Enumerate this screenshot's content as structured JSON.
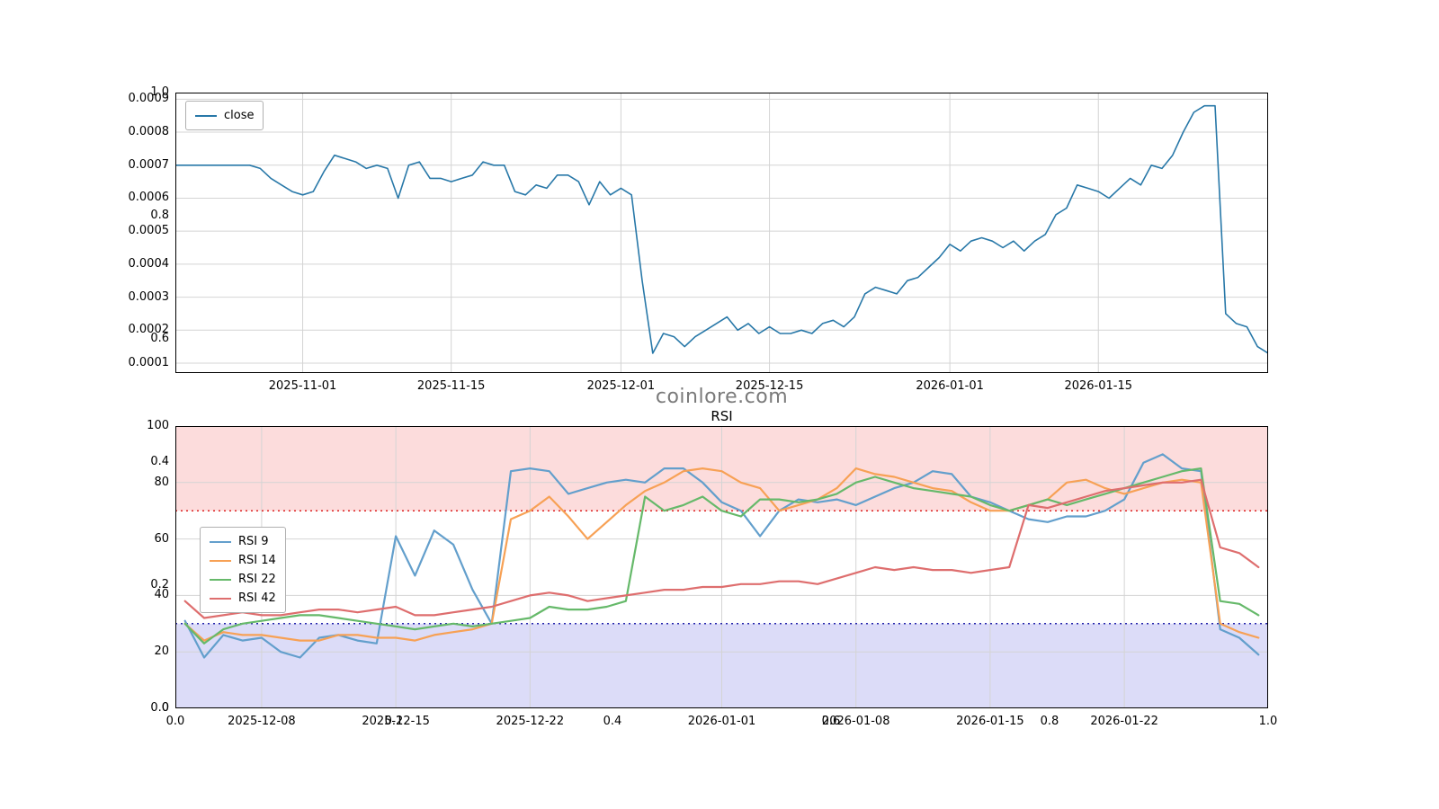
{
  "watermark": "coinlore.com",
  "colors": {
    "grid": "#d4d4d4",
    "spine": "#000000",
    "close_line": "#2878a8",
    "rsi9": "#639fcc",
    "rsi14": "#f7a155",
    "rsi22": "#66b96a",
    "rsi42": "#de6e6e",
    "overbought_band": "#fcdcdc",
    "oversold_band": "#dcdcf8",
    "overbought_line": "#dd2222",
    "oversold_line": "#2222aa"
  },
  "overlay_axis": {
    "y_ticks": [
      {
        "value": 1.0,
        "label": "1.0"
      },
      {
        "value": 0.8,
        "label": "0.8"
      },
      {
        "value": 0.6,
        "label": "0.6"
      },
      {
        "value": 0.4,
        "label": "0.4"
      },
      {
        "value": 0.2,
        "label": "0.2"
      },
      {
        "value": 0.0,
        "label": "0.0"
      }
    ],
    "x_ticks": [
      {
        "value": 0.0,
        "label": "0.0"
      },
      {
        "value": 0.2,
        "label": "0.2"
      },
      {
        "value": 0.4,
        "label": "0.4"
      },
      {
        "value": 0.6,
        "label": "0.6"
      },
      {
        "value": 0.8,
        "label": "0.8"
      },
      {
        "value": 1.0,
        "label": "1.0"
      }
    ]
  },
  "chart_data": [
    {
      "type": "line",
      "title": "",
      "xlim": [
        0,
        103
      ],
      "ylim": [
        7e-05,
        0.00092
      ],
      "grid": true,
      "legend_position": "upper-left",
      "x_ticks": [
        {
          "index": 12,
          "label": "2025-11-01"
        },
        {
          "index": 26,
          "label": "2025-11-15"
        },
        {
          "index": 42,
          "label": "2025-12-01"
        },
        {
          "index": 56,
          "label": "2025-12-15"
        },
        {
          "index": 73,
          "label": "2026-01-01"
        },
        {
          "index": 87,
          "label": "2026-01-15"
        }
      ],
      "y_ticks": [
        {
          "value": 0.0001,
          "label": "0.0001"
        },
        {
          "value": 0.0002,
          "label": "0.0002"
        },
        {
          "value": 0.0003,
          "label": "0.0003"
        },
        {
          "value": 0.0004,
          "label": "0.0004"
        },
        {
          "value": 0.0005,
          "label": "0.0005"
        },
        {
          "value": 0.0006,
          "label": "0.0006"
        },
        {
          "value": 0.0007,
          "label": "0.0007"
        },
        {
          "value": 0.0008,
          "label": "0.0008"
        },
        {
          "value": 0.0009,
          "label": "0.0009"
        }
      ],
      "series": [
        {
          "name": "close",
          "color": "#2878a8",
          "width": 1.6,
          "values": [
            0.0007,
            0.0007,
            0.0007,
            0.0007,
            0.0007,
            0.0007,
            0.0007,
            0.0007,
            0.00069,
            0.00066,
            0.00064,
            0.00062,
            0.00061,
            0.00062,
            0.00068,
            0.00073,
            0.00072,
            0.00071,
            0.00069,
            0.0007,
            0.00069,
            0.0006,
            0.0007,
            0.00071,
            0.00066,
            0.00066,
            0.00065,
            0.00066,
            0.00067,
            0.00071,
            0.0007,
            0.0007,
            0.00062,
            0.00061,
            0.00064,
            0.00063,
            0.00067,
            0.00067,
            0.00065,
            0.00058,
            0.00065,
            0.00061,
            0.00063,
            0.00061,
            0.00035,
            0.00013,
            0.00019,
            0.00018,
            0.00015,
            0.00018,
            0.0002,
            0.00022,
            0.00024,
            0.0002,
            0.00022,
            0.00019,
            0.00021,
            0.00019,
            0.00019,
            0.0002,
            0.00019,
            0.00022,
            0.00023,
            0.00021,
            0.00024,
            0.00031,
            0.00033,
            0.00032,
            0.00031,
            0.00035,
            0.00036,
            0.00039,
            0.00042,
            0.00046,
            0.00044,
            0.00047,
            0.00048,
            0.00047,
            0.00045,
            0.00047,
            0.00044,
            0.00047,
            0.00049,
            0.00055,
            0.00057,
            0.00064,
            0.00063,
            0.00062,
            0.0006,
            0.00063,
            0.00066,
            0.00064,
            0.0007,
            0.00069,
            0.00073,
            0.0008,
            0.00086,
            0.00088,
            0.00088,
            0.00025,
            0.00022,
            0.00021,
            0.00015,
            0.00013
          ]
        }
      ]
    },
    {
      "type": "line",
      "title": "RSI",
      "xlim": [
        -0.5,
        56.5
      ],
      "ylim": [
        0,
        100
      ],
      "grid": true,
      "legend_position": "center-left",
      "bands": [
        {
          "from": 70,
          "to": 100,
          "color": "#fcdcdc",
          "meaning": "overbought"
        },
        {
          "from": 0,
          "to": 30,
          "color": "#dcdcf8",
          "meaning": "oversold"
        }
      ],
      "hlines": [
        {
          "y": 70,
          "color": "#dd2222",
          "style": "dotted"
        },
        {
          "y": 30,
          "color": "#2222aa",
          "style": "dotted"
        }
      ],
      "x_ticks": [
        {
          "index": 4,
          "label": "2025-12-08"
        },
        {
          "index": 11,
          "label": "2025-12-15"
        },
        {
          "index": 18,
          "label": "2025-12-22"
        },
        {
          "index": 28,
          "label": "2026-01-01"
        },
        {
          "index": 35,
          "label": "2026-01-08"
        },
        {
          "index": 42,
          "label": "2026-01-15"
        },
        {
          "index": 49,
          "label": "2026-01-22"
        }
      ],
      "y_ticks": [
        {
          "value": 0,
          "label": "0"
        },
        {
          "value": 20,
          "label": "20"
        },
        {
          "value": 40,
          "label": "40"
        },
        {
          "value": 60,
          "label": "60"
        },
        {
          "value": 80,
          "label": "80"
        },
        {
          "value": 100,
          "label": "100"
        }
      ],
      "series": [
        {
          "name": "RSI 9",
          "color": "#639fcc",
          "width": 2.2,
          "values": [
            31,
            18,
            26,
            24,
            25,
            20,
            18,
            25,
            26,
            24,
            23,
            61,
            47,
            63,
            58,
            42,
            30,
            84,
            85,
            84,
            76,
            78,
            80,
            81,
            80,
            85,
            85,
            80,
            73,
            70,
            61,
            70,
            74,
            73,
            74,
            72,
            75,
            78,
            80,
            84,
            83,
            75,
            73,
            70,
            67,
            66,
            68,
            68,
            70,
            74,
            87,
            90,
            85,
            84,
            28,
            25,
            19
          ]
        },
        {
          "name": "RSI 14",
          "color": "#f7a155",
          "width": 2.2,
          "values": [
            30,
            24,
            27,
            26,
            26,
            25,
            24,
            24,
            26,
            26,
            25,
            25,
            24,
            26,
            27,
            28,
            30,
            67,
            70,
            75,
            68,
            60,
            66,
            72,
            77,
            80,
            84,
            85,
            84,
            80,
            78,
            70,
            72,
            74,
            78,
            85,
            83,
            82,
            80,
            78,
            77,
            73,
            70,
            70,
            72,
            74,
            80,
            81,
            78,
            76,
            78,
            80,
            81,
            80,
            30,
            27,
            25
          ]
        },
        {
          "name": "RSI 22",
          "color": "#66b96a",
          "width": 2.2,
          "values": [
            30,
            23,
            28,
            30,
            31,
            32,
            33,
            33,
            32,
            31,
            30,
            29,
            28,
            29,
            30,
            29,
            30,
            31,
            32,
            36,
            35,
            35,
            36,
            38,
            75,
            70,
            72,
            75,
            70,
            68,
            74,
            74,
            73,
            74,
            76,
            80,
            82,
            80,
            78,
            77,
            76,
            75,
            72,
            70,
            72,
            74,
            72,
            74,
            76,
            78,
            80,
            82,
            84,
            85,
            38,
            37,
            33
          ]
        },
        {
          "name": "RSI 42",
          "color": "#de6e6e",
          "width": 2.2,
          "values": [
            38,
            32,
            33,
            34,
            33,
            33,
            34,
            35,
            35,
            34,
            35,
            36,
            33,
            33,
            34,
            35,
            36,
            38,
            40,
            41,
            40,
            38,
            39,
            40,
            41,
            42,
            42,
            43,
            43,
            44,
            44,
            45,
            45,
            44,
            46,
            48,
            50,
            49,
            50,
            49,
            49,
            48,
            49,
            50,
            72,
            71,
            73,
            75,
            77,
            78,
            79,
            80,
            80,
            81,
            57,
            55,
            50
          ]
        }
      ]
    }
  ]
}
